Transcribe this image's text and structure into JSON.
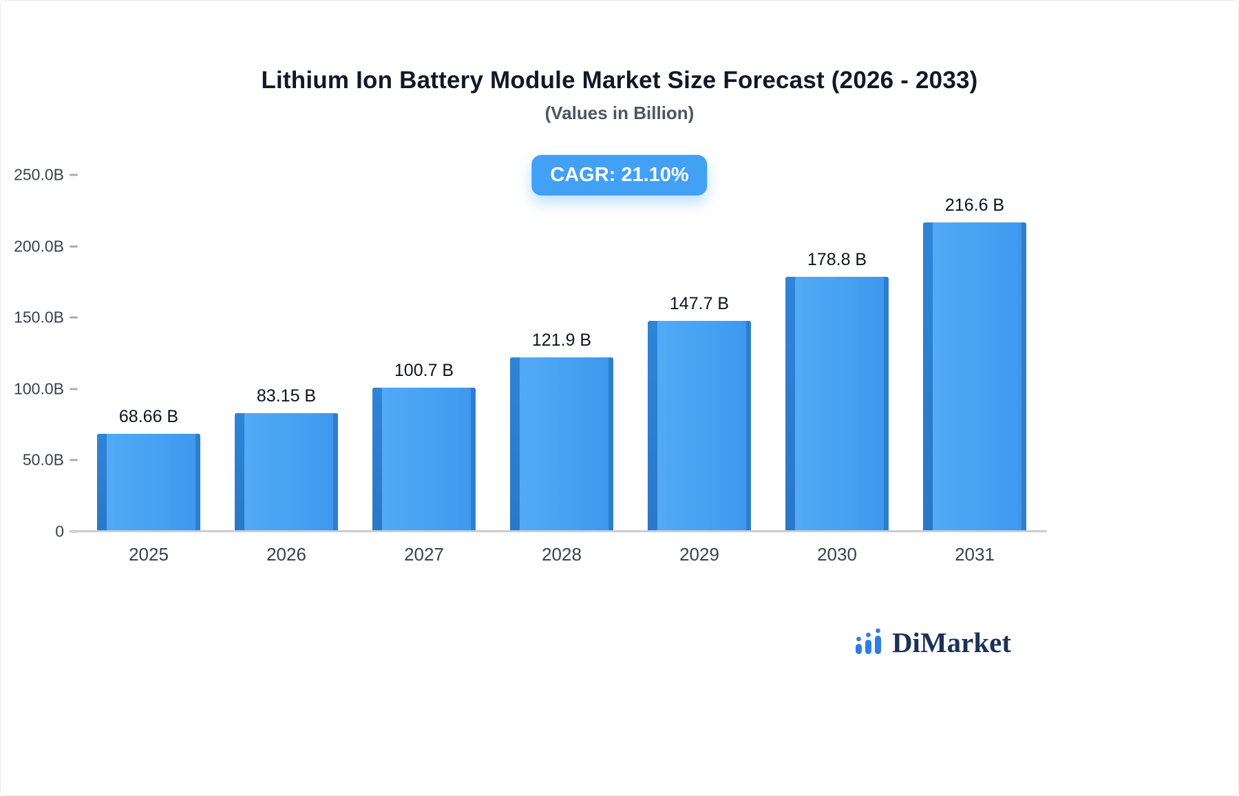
{
  "header": {
    "title": "Lithium Ion Battery Module Market Size Forecast (2026 - 2033)",
    "subtitle": "(Values in Billion)"
  },
  "badge": {
    "label": "CAGR: 21.10%"
  },
  "chart_data": {
    "type": "bar",
    "title": "Lithium Ion Battery Module Market Size Forecast (2026 - 2033)",
    "subtitle": "(Values in Billion)",
    "categories": [
      "2025",
      "2026",
      "2027",
      "2028",
      "2029",
      "2030",
      "2031"
    ],
    "values": [
      68.66,
      83.15,
      100.7,
      121.9,
      147.7,
      178.8,
      216.6
    ],
    "value_labels": [
      "68.66 B",
      "83.15 B",
      "100.7 B",
      "121.9 B",
      "147.7 B",
      "178.8 B",
      "216.6 B"
    ],
    "cagr": "21.10%",
    "xlabel": "",
    "ylabel": "",
    "ylim": [
      0,
      250
    ],
    "ytick_labels": [
      "250.0B",
      "200.0B",
      "150.0B",
      "100.0B",
      "50.0B",
      "0"
    ],
    "grid": false,
    "legend": false,
    "bar_color": "#42a0f5",
    "bar_edge_color": "#2a78c8",
    "axis_line_color": "#c8cdd3"
  },
  "logo": {
    "text": "DiMarket",
    "icon_color": "#2f7fe0"
  }
}
